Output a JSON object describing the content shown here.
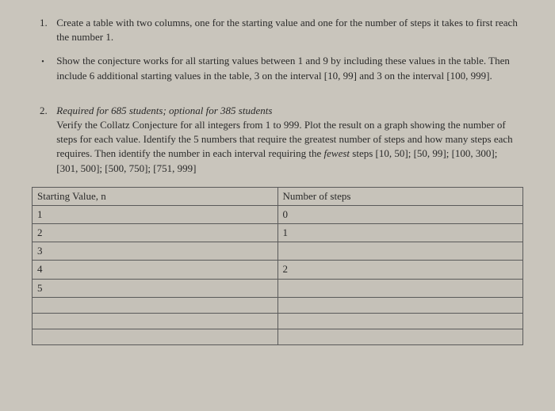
{
  "q1": {
    "number": "1.",
    "para1": "Create a table with two columns, one for the starting value and one for the number of steps it takes to first reach the number 1.",
    "para2": "Show the conjecture works for all starting values between 1 and 9 by including these values in the table. Then include 6 additional starting values in the table, 3 on the interval [10, 99] and 3 on the interval [100, 999]."
  },
  "q2": {
    "number": "2.",
    "lead": "Required for 685 students; optional for 385 students",
    "body": "Verify the Collatz Conjecture for all integers from 1 to 999. Plot the result on a graph showing the number of steps for each value. Identify the 5 numbers that require the greatest number of steps and how many steps each requires. Then identify the number in each interval requiring the ",
    "fewest": "fewest",
    "body2": " steps [10, 50]; [50, 99]; [100, 300]; [301, 500]; [500, 750]; [751, 999]"
  },
  "table": {
    "header1": "Starting Value, n",
    "header2": "Number of steps",
    "rows": [
      {
        "n": "1",
        "steps": "0"
      },
      {
        "n": "2",
        "steps": "1"
      },
      {
        "n": "3",
        "steps": ""
      },
      {
        "n": "4",
        "steps": "2"
      },
      {
        "n": "5",
        "steps": ""
      },
      {
        "n": "",
        "steps": ""
      },
      {
        "n": "",
        "steps": ""
      },
      {
        "n": "",
        "steps": ""
      }
    ]
  }
}
